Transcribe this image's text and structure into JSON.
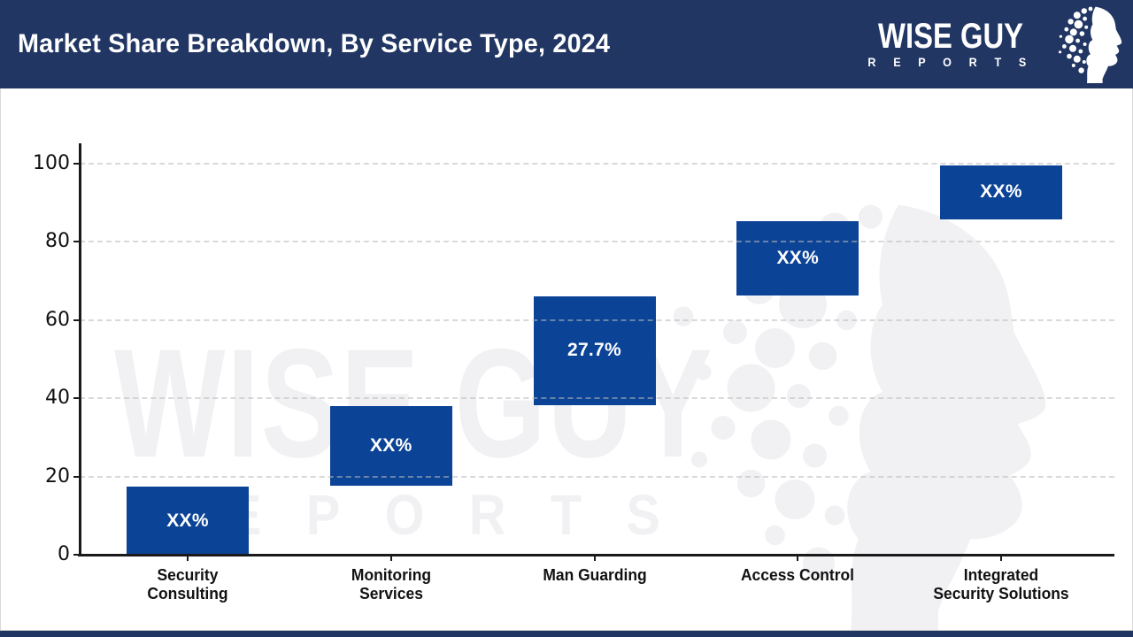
{
  "header": {
    "title": "Market Share Breakdown, By Service Type, 2024",
    "logo": {
      "name": "WISE GUY",
      "sub": "R E P O R T S"
    }
  },
  "watermark": {
    "line1": "WISE GUY",
    "line2": "REPORTS"
  },
  "chart_data": {
    "type": "bar",
    "variant": "waterfall",
    "title": "Market Share Breakdown, By Service Type, 2024",
    "categories": [
      "Security Consulting",
      "Monitoring Services",
      "Man Guarding",
      "Access Control",
      "Integrated Security Solutions"
    ],
    "category_lines": [
      [
        "Security",
        "Consulting"
      ],
      [
        "Monitoring",
        "Services"
      ],
      [
        "Man Guarding"
      ],
      [
        "Access Control"
      ],
      [
        "Integrated",
        "Security Solutions"
      ]
    ],
    "bars": [
      {
        "category": "Security Consulting",
        "start": 0,
        "end": 17.4,
        "label": "XX%"
      },
      {
        "category": "Monitoring Services",
        "start": 17.7,
        "end": 38.0,
        "label": "XX%"
      },
      {
        "category": "Man Guarding",
        "start": 38.3,
        "end": 66.0,
        "label": "27.7%"
      },
      {
        "category": "Access Control",
        "start": 66.2,
        "end": 85.4,
        "label": "XX%"
      },
      {
        "category": "Integrated Security Solutions",
        "start": 85.7,
        "end": 99.6,
        "label": "XX%"
      }
    ],
    "xlabel": "",
    "ylabel": "",
    "ylim": [
      0,
      100
    ],
    "yticks": [
      0,
      20,
      40,
      60,
      80,
      100
    ],
    "grid": {
      "horizontal": true,
      "style": "dashed"
    },
    "legend": false,
    "bar_color": "#0b4396",
    "bar_label_color": "#ffffff",
    "header_color": "#213663",
    "watermark_color": "#f1f1f4"
  }
}
